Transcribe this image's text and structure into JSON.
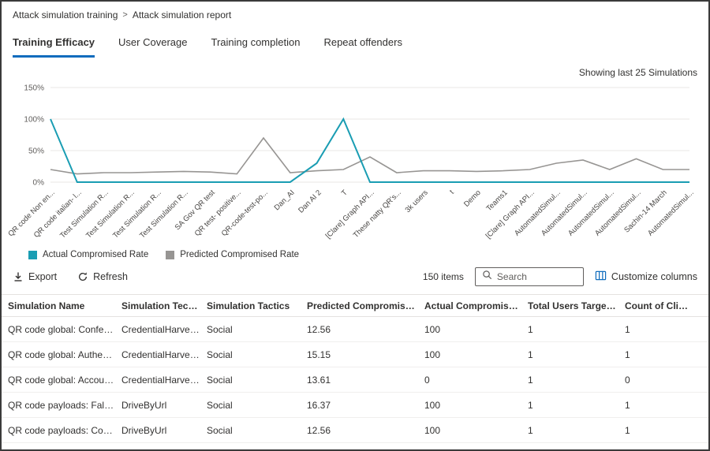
{
  "breadcrumb": {
    "separator": ">",
    "items": [
      "Attack simulation training",
      "Attack simulation report"
    ]
  },
  "tabs": [
    {
      "label": "Training Efficacy",
      "active": true
    },
    {
      "label": "User Coverage",
      "active": false
    },
    {
      "label": "Training completion",
      "active": false
    },
    {
      "label": "Repeat offenders",
      "active": false
    }
  ],
  "chart_note": "Showing last 25 Simulations",
  "chart_data": {
    "type": "line",
    "title": "",
    "xlabel": "",
    "ylabel": "",
    "ylim": [
      0,
      150
    ],
    "yticks": [
      "150%",
      "100%",
      "50%",
      "0%"
    ],
    "grid": true,
    "legend_position": "bottom",
    "categories": [
      "QR code Non en...",
      "QR code italian- l...",
      "Test Simulation R...",
      "Test Simulation R...",
      "Test Simulation R...",
      "Test Simulation R...",
      "SA Gov QR test",
      "QR test- positive...",
      "QR-code-test-po...",
      "Dan_AI",
      "Dan AI 2",
      "T",
      "[Clare] Graph API...",
      "These natty QR's...",
      "3k users",
      "t",
      "Demo",
      "Teams1",
      "[Clare] Graph API...",
      "AutomatedSimul...",
      "AutomatedSimul...",
      "AutomatedSimul...",
      "AutomatedSimul...",
      "Sachin-14 March",
      "AutomatedSimul..."
    ],
    "series": [
      {
        "name": "Actual Compromised Rate",
        "color": "#1a9db3",
        "values": [
          100,
          0,
          0,
          0,
          0,
          0,
          0,
          0,
          0,
          0,
          30,
          100,
          0,
          0,
          0,
          0,
          0,
          0,
          0,
          0,
          0,
          0,
          0,
          0,
          0
        ]
      },
      {
        "name": "Predicted Compromised Rate",
        "color": "#979593",
        "values": [
          20,
          13,
          15,
          15,
          16,
          17,
          16,
          13,
          70,
          15,
          18,
          20,
          40,
          15,
          18,
          18,
          17,
          18,
          20,
          30,
          35,
          20,
          37,
          20,
          20
        ]
      }
    ]
  },
  "toolbar": {
    "export_label": "Export",
    "refresh_label": "Refresh",
    "items_count": "150 items",
    "search_placeholder": "Search",
    "customize_label": "Customize columns"
  },
  "table": {
    "columns": [
      "Simulation Name",
      "Simulation Technique",
      "Simulation Tactics",
      "Predicted Compromised Rate",
      "Actual Compromised Rate",
      "Total Users Targeted",
      "Count of Clicked Users"
    ],
    "rows": [
      [
        "QR code global: Conferenc...",
        "CredentialHarvesting",
        "Social",
        "12.56",
        "100",
        "1",
        "1"
      ],
      [
        "QR code global: Authentic...",
        "CredentialHarvesting",
        "Social",
        "15.15",
        "100",
        "1",
        "1"
      ],
      [
        "QR code global: Account S...",
        "CredentialHarvesting",
        "Social",
        "13.61",
        "0",
        "1",
        "0"
      ],
      [
        "QR code payloads: False Ch...",
        "DriveByUrl",
        "Social",
        "16.37",
        "100",
        "1",
        "1"
      ],
      [
        "QR code payloads: Confere...",
        "DriveByUrl",
        "Social",
        "12.56",
        "100",
        "1",
        "1"
      ]
    ]
  }
}
